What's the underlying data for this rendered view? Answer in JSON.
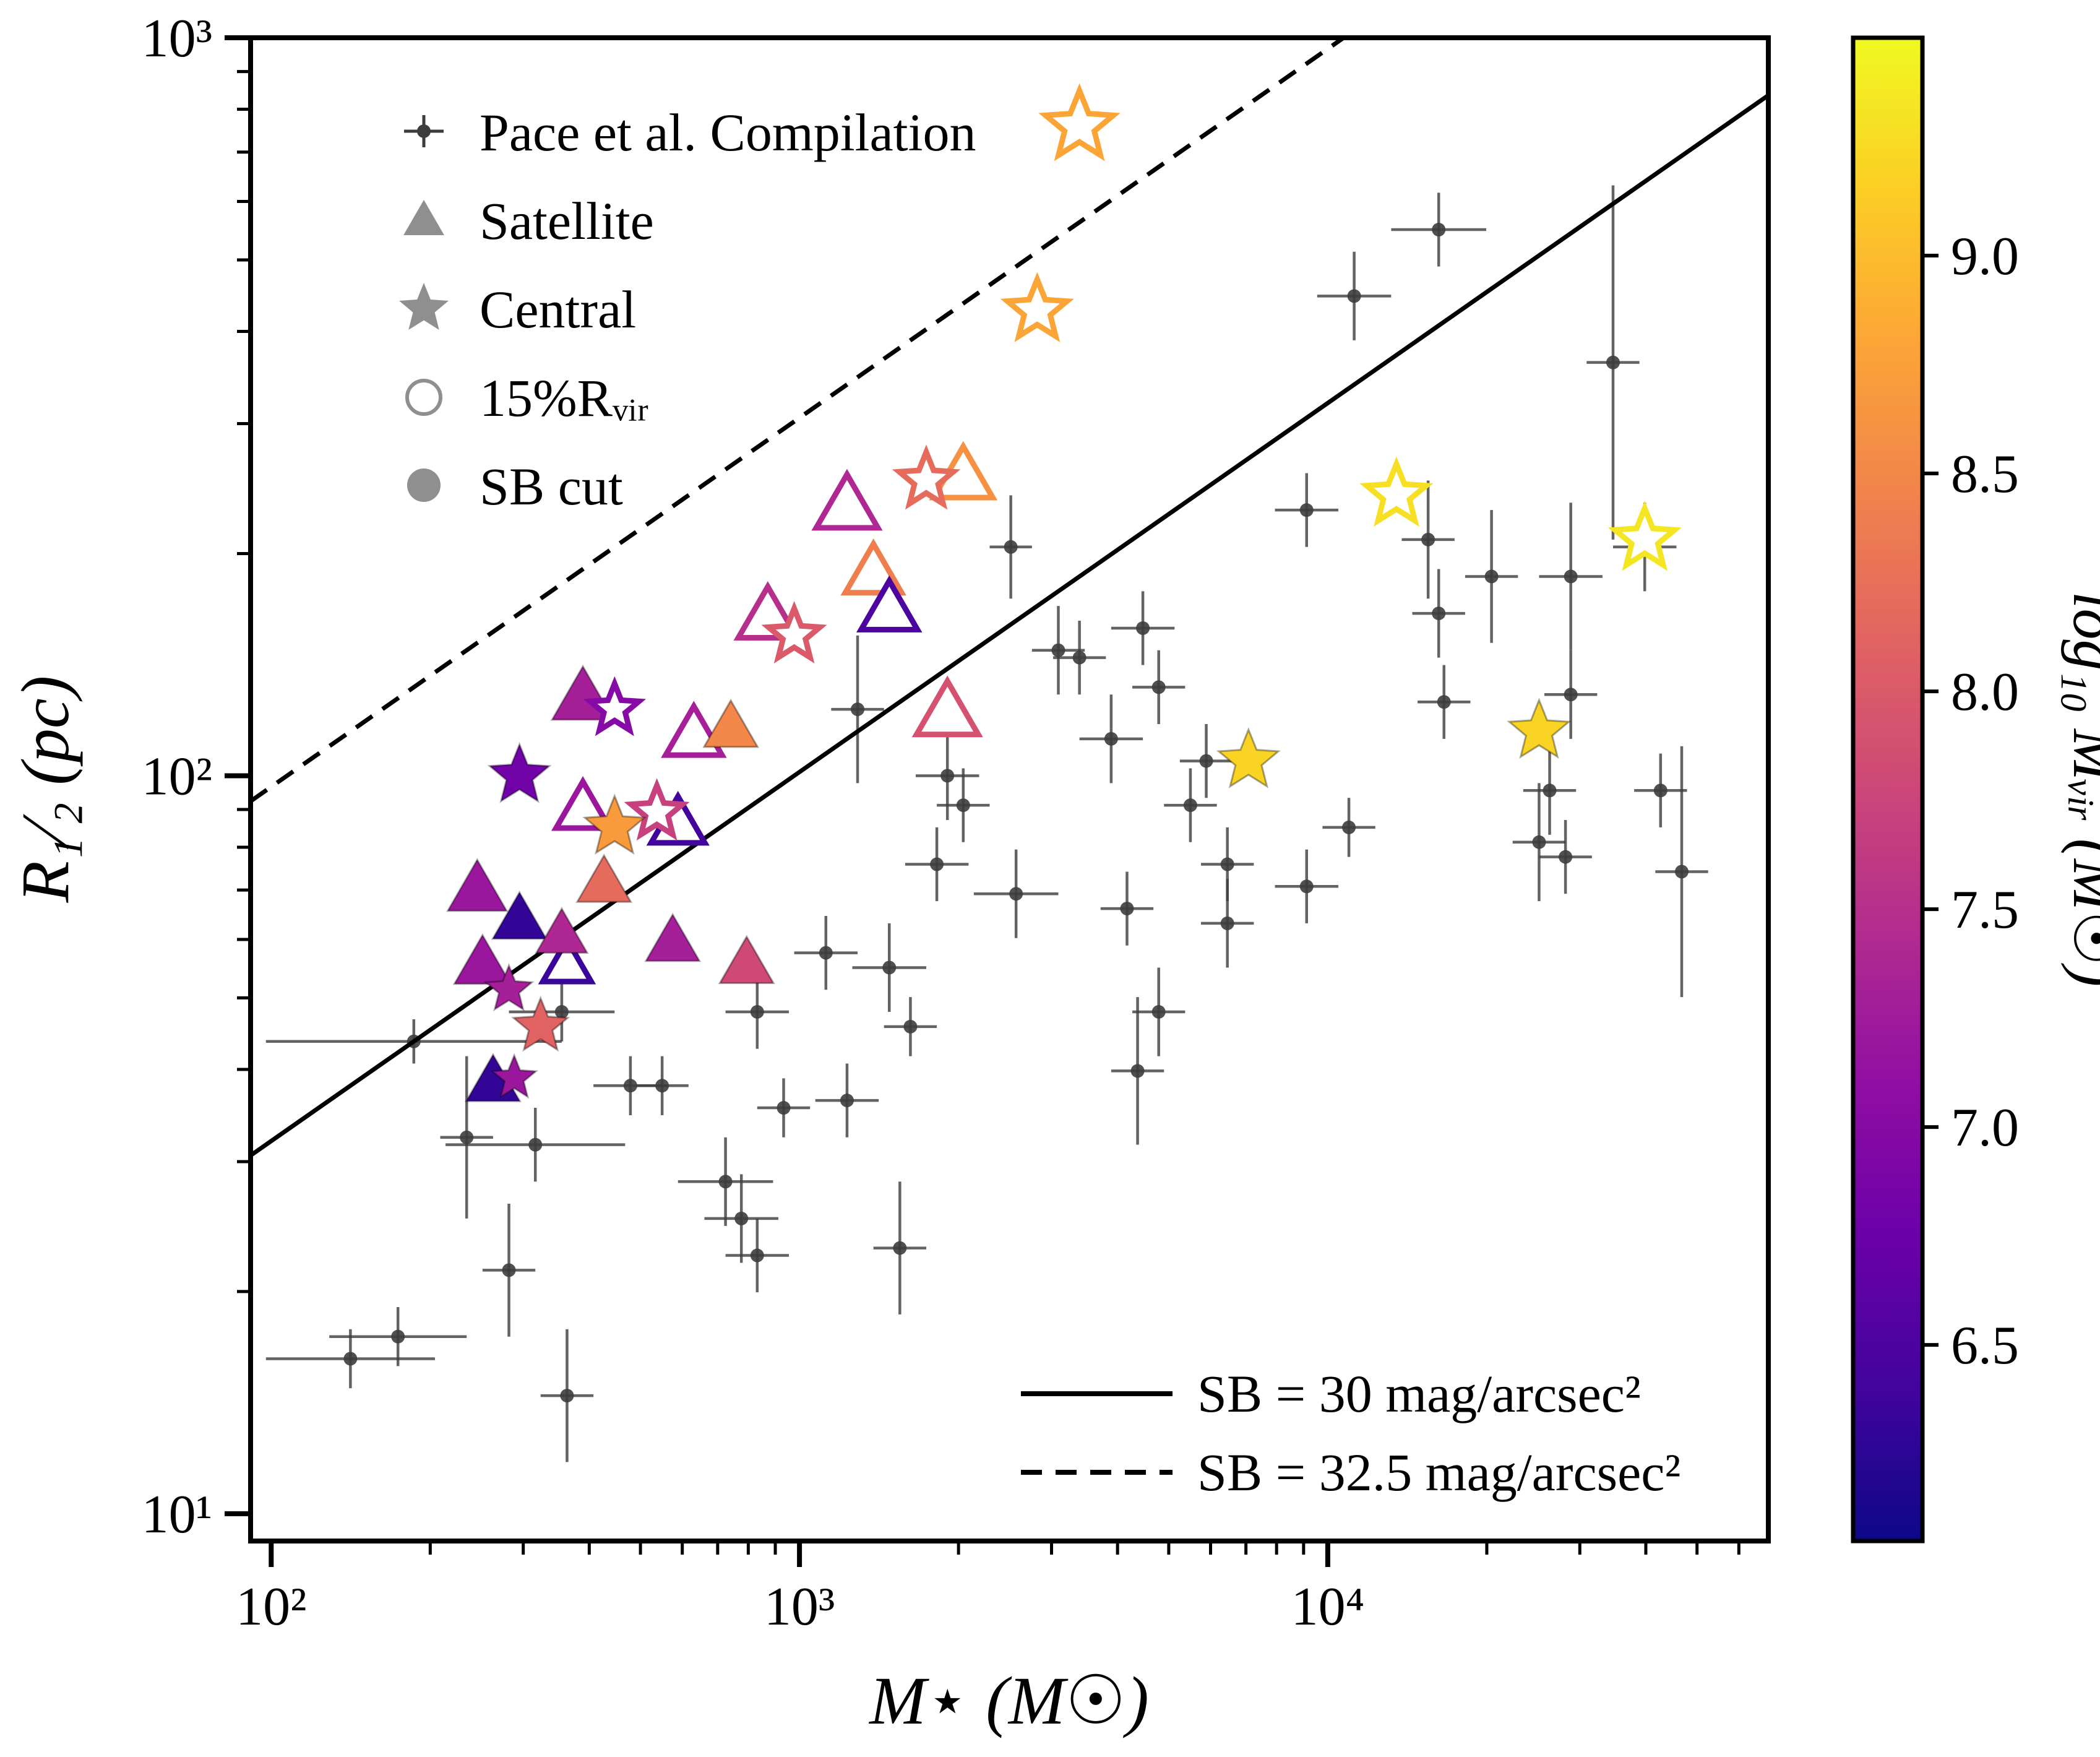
{
  "figure": {
    "background": "#ffffff",
    "frame_color": "#000000"
  },
  "legend": {
    "markers": [
      {
        "label": "Pace et al. Compilation",
        "type": "dot-with-errorbars",
        "color": "#3d3d3d"
      },
      {
        "label": "Satellite",
        "type": "filled-triangle",
        "color": "#8f8f8f"
      },
      {
        "label": "Central",
        "type": "filled-star",
        "color": "#8f8f8f"
      },
      {
        "label": "15%Rᵥᵢᵣ",
        "type": "open-circle",
        "color": "#8f8f8f"
      },
      {
        "label": "SB cut",
        "type": "filled-circle",
        "color": "#8f8f8f"
      }
    ],
    "lines": [
      {
        "label": "SB = 30 mag/arcsec²",
        "style": "solid",
        "color": "#000000"
      },
      {
        "label": "SB = 32.5 mag/arcsec²",
        "style": "dashed",
        "color": "#000000"
      }
    ]
  },
  "chart_data": {
    "type": "scatter",
    "title": "",
    "xlabel": "M⋆ (M☉)",
    "ylabel": "R₁⁄₂ (pc)",
    "x_scale": "log",
    "y_scale": "log",
    "xlim_log": [
      1.961,
      4.834
    ],
    "ylim_log": [
      0.963,
      3.0
    ],
    "x_ticks": [
      {
        "log": 2,
        "label": "10²"
      },
      {
        "log": 3,
        "label": "10³"
      },
      {
        "log": 4,
        "label": "10⁴"
      }
    ],
    "y_ticks": [
      {
        "log": 1,
        "label": "10¹"
      },
      {
        "log": 2,
        "label": "10²"
      },
      {
        "log": 3,
        "label": "10³"
      }
    ],
    "reference_lines": [
      {
        "label": "SB = 30 mag/arcsec²",
        "style": "solid",
        "slope": 0.5,
        "intercept_log": 0.505
      },
      {
        "label": "SB = 32.5 mag/arcsec²",
        "style": "dashed",
        "slope": 0.5,
        "intercept_log": 0.985
      }
    ],
    "colorbar": {
      "label": "log₁₀ Mᵥᵢᵣ (M☉)",
      "vmin": 6.05,
      "vmax": 9.5,
      "ticks": [
        6.5,
        7.0,
        7.5,
        8.0,
        8.5,
        9.0
      ],
      "colormap": "plasma",
      "stops": [
        [
          0.0,
          "#0d0887"
        ],
        [
          0.1,
          "#41049d"
        ],
        [
          0.2,
          "#6a00a8"
        ],
        [
          0.3,
          "#8f0da4"
        ],
        [
          0.4,
          "#b12a90"
        ],
        [
          0.5,
          "#cc4778"
        ],
        [
          0.6,
          "#e16462"
        ],
        [
          0.7,
          "#f2844b"
        ],
        [
          0.8,
          "#fca636"
        ],
        [
          0.9,
          "#fcce25"
        ],
        [
          1.0,
          "#f0f921"
        ]
      ]
    },
    "series": [
      {
        "name": "Pace et al. Compilation",
        "marker": "dot",
        "color": "#3d3d3d",
        "point_format": [
          "log10_Mstar",
          "log10_R12_pc",
          "xerr_dex",
          "yerr_dex"
        ],
        "points": [
          [
            2.27,
            1.64,
            0.28,
            0.03
          ],
          [
            2.24,
            1.24,
            0.13,
            0.04
          ],
          [
            2.37,
            1.51,
            0.05,
            0.11
          ],
          [
            2.45,
            1.33,
            0.05,
            0.09
          ],
          [
            2.5,
            1.5,
            0.17,
            0.05
          ],
          [
            2.56,
            1.16,
            0.05,
            0.09
          ],
          [
            2.55,
            1.68,
            0.1,
            0.04
          ],
          [
            2.68,
            1.58,
            0.07,
            0.04
          ],
          [
            2.74,
            1.58,
            0.05,
            0.04
          ],
          [
            2.86,
            1.45,
            0.09,
            0.06
          ],
          [
            2.89,
            1.4,
            0.07,
            0.06
          ],
          [
            2.92,
            1.35,
            0.06,
            0.05
          ],
          [
            2.92,
            1.68,
            0.06,
            0.05
          ],
          [
            2.97,
            1.55,
            0.05,
            0.04
          ],
          [
            3.09,
            1.56,
            0.06,
            0.05
          ],
          [
            3.05,
            1.76,
            0.06,
            0.05
          ],
          [
            3.17,
            1.74,
            0.07,
            0.06
          ],
          [
            3.21,
            1.66,
            0.05,
            0.04
          ],
          [
            3.19,
            1.36,
            0.05,
            0.09
          ],
          [
            3.11,
            2.09,
            0.05,
            0.1
          ],
          [
            3.28,
            2.0,
            0.06,
            0.06
          ],
          [
            3.31,
            1.96,
            0.05,
            0.05
          ],
          [
            3.26,
            1.88,
            0.06,
            0.05
          ],
          [
            3.41,
            1.84,
            0.08,
            0.06
          ],
          [
            3.4,
            2.31,
            0.04,
            0.07
          ],
          [
            3.49,
            2.17,
            0.05,
            0.06
          ],
          [
            3.53,
            2.16,
            0.05,
            0.05
          ],
          [
            3.65,
            2.2,
            0.06,
            0.05
          ],
          [
            3.68,
            2.12,
            0.05,
            0.05
          ],
          [
            3.59,
            2.05,
            0.06,
            0.06
          ],
          [
            3.62,
            1.82,
            0.05,
            0.05
          ],
          [
            3.64,
            1.6,
            0.05,
            0.1
          ],
          [
            3.68,
            1.68,
            0.05,
            0.06
          ],
          [
            3.74,
            1.96,
            0.05,
            0.05
          ],
          [
            3.77,
            2.02,
            0.05,
            0.05
          ],
          [
            3.81,
            1.88,
            0.05,
            0.05
          ],
          [
            3.81,
            1.8,
            0.05,
            0.06
          ],
          [
            3.96,
            1.85,
            0.06,
            0.05
          ],
          [
            4.04,
            1.93,
            0.05,
            0.04
          ],
          [
            3.96,
            2.36,
            0.06,
            0.05
          ],
          [
            4.05,
            2.65,
            0.07,
            0.06
          ],
          [
            4.21,
            2.74,
            0.09,
            0.05
          ],
          [
            4.19,
            2.32,
            0.05,
            0.08
          ],
          [
            4.21,
            2.22,
            0.05,
            0.06
          ],
          [
            4.22,
            2.1,
            0.05,
            0.05
          ],
          [
            4.31,
            2.27,
            0.05,
            0.09
          ],
          [
            4.4,
            1.91,
            0.05,
            0.08
          ],
          [
            4.45,
            1.89,
            0.05,
            0.05
          ],
          [
            4.42,
            1.98,
            0.05,
            0.06
          ],
          [
            4.46,
            2.27,
            0.06,
            0.1
          ],
          [
            4.46,
            2.11,
            0.05,
            0.06
          ],
          [
            4.54,
            2.56,
            0.05,
            0.24
          ],
          [
            4.6,
            2.31,
            0.06,
            0.06
          ],
          [
            4.63,
            1.98,
            0.05,
            0.05
          ],
          [
            4.67,
            1.87,
            0.05,
            0.17
          ],
          [
            2.15,
            1.21,
            0.16,
            0.04
          ]
        ]
      },
      {
        "name": "Satellite (15% Rvir)",
        "marker": "triangle",
        "filled": false,
        "point_format": [
          "log10_Mstar",
          "log10_R12_pc",
          "log10_Mvir",
          "size_scale"
        ],
        "points": [
          [
            3.09,
            2.36,
            7.4,
            1.15
          ],
          [
            3.31,
            2.4,
            8.6,
            1.1
          ],
          [
            3.14,
            2.27,
            8.4,
            1.05
          ],
          [
            3.17,
            2.22,
            6.5,
            1.05
          ],
          [
            2.94,
            2.21,
            7.5,
            1.1
          ],
          [
            3.28,
            2.08,
            7.9,
            1.15
          ],
          [
            2.8,
            2.05,
            7.3,
            1.05
          ],
          [
            2.59,
            1.95,
            7.2,
            1.0
          ],
          [
            2.77,
            1.93,
            6.4,
            1.0
          ],
          [
            2.56,
            1.74,
            6.35,
            0.9
          ]
        ]
      },
      {
        "name": "Satellite (SB cut)",
        "marker": "triangle",
        "filled": true,
        "point_format": [
          "log10_Mstar",
          "log10_R12_pc",
          "log10_Mvir",
          "size_scale"
        ],
        "points": [
          [
            2.59,
            2.1,
            7.3,
            1.15
          ],
          [
            2.87,
            2.06,
            8.5,
            1.0
          ],
          [
            2.39,
            1.84,
            7.2,
            1.1
          ],
          [
            2.47,
            1.8,
            6.3,
            1.0
          ],
          [
            2.4,
            1.74,
            7.2,
            1.05
          ],
          [
            2.63,
            1.85,
            8.2,
            1.0
          ],
          [
            2.76,
            1.77,
            7.3,
            1.0
          ],
          [
            2.9,
            1.74,
            7.8,
            1.0
          ],
          [
            2.42,
            1.58,
            6.3,
            1.0
          ],
          [
            2.55,
            1.78,
            7.4,
            0.95
          ]
        ]
      },
      {
        "name": "Central (15% Rvir)",
        "marker": "star",
        "filled": false,
        "point_format": [
          "log10_Mstar",
          "log10_R12_pc",
          "log10_Mvir",
          "size_scale"
        ],
        "points": [
          [
            3.53,
            2.88,
            8.8,
            1.25
          ],
          [
            3.45,
            2.63,
            8.8,
            1.1
          ],
          [
            3.24,
            2.4,
            8.2,
            1.0
          ],
          [
            4.13,
            2.38,
            9.3,
            1.1
          ],
          [
            4.6,
            2.32,
            9.35,
            1.1
          ],
          [
            2.99,
            2.19,
            8.0,
            0.95
          ],
          [
            2.65,
            2.09,
            7.0,
            0.9
          ],
          [
            2.73,
            1.95,
            7.7,
            0.95
          ]
        ]
      },
      {
        "name": "Central (SB cut)",
        "marker": "star",
        "filled": true,
        "point_format": [
          "log10_Mstar",
          "log10_R12_pc",
          "log10_Mvir",
          "size_scale"
        ],
        "points": [
          [
            2.47,
            2.0,
            6.8,
            1.1
          ],
          [
            2.65,
            1.93,
            8.7,
            1.1
          ],
          [
            2.51,
            1.66,
            8.1,
            1.0
          ],
          [
            2.45,
            1.71,
            7.3,
            0.85
          ],
          [
            3.85,
            2.02,
            9.2,
            1.1
          ],
          [
            4.4,
            2.06,
            9.2,
            1.1
          ],
          [
            2.46,
            1.59,
            7.2,
            0.8
          ]
        ]
      }
    ]
  }
}
